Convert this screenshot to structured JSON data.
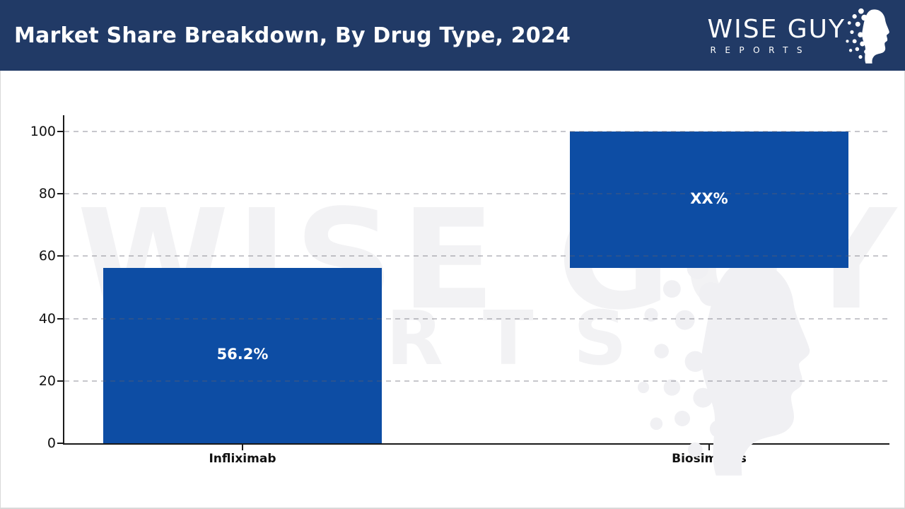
{
  "header": {
    "title": "Market Share Breakdown, By Drug Type, 2024",
    "bg_color": "#213a66",
    "text_color": "#ffffff",
    "logo": {
      "line1": "WISE GUY",
      "line2": "REPORTS",
      "icon": "dotted-face-profile"
    }
  },
  "chart_data": {
    "type": "bar",
    "title": "Market Share Breakdown, By Drug Type, 2024",
    "categories": [
      "Infliximab",
      "Biosimilars"
    ],
    "bars": [
      {
        "category": "Infliximab",
        "from": 0,
        "to": 56.2,
        "label": "56.2%"
      },
      {
        "category": "Biosimilars",
        "from": 56.2,
        "to": 100,
        "label": "XX%",
        "implied_value": 43.8
      }
    ],
    "ylim": [
      0,
      100
    ],
    "yticks": [
      0,
      20,
      40,
      60,
      80,
      100
    ],
    "unit": "%",
    "grid": "horizontal-dashed-over-bars",
    "legend": "none",
    "bar_color": "#0d4da4",
    "bar_label_color": "#ffffff",
    "grid_color": "rgba(95,95,108,0.35)",
    "spine_color": "#1a1a1a",
    "tick_label_color": "#111111"
  },
  "watermark": {
    "line1": "WISE GUY",
    "letters": [
      "R",
      "T",
      "S"
    ],
    "color": "#f2f2f4"
  }
}
